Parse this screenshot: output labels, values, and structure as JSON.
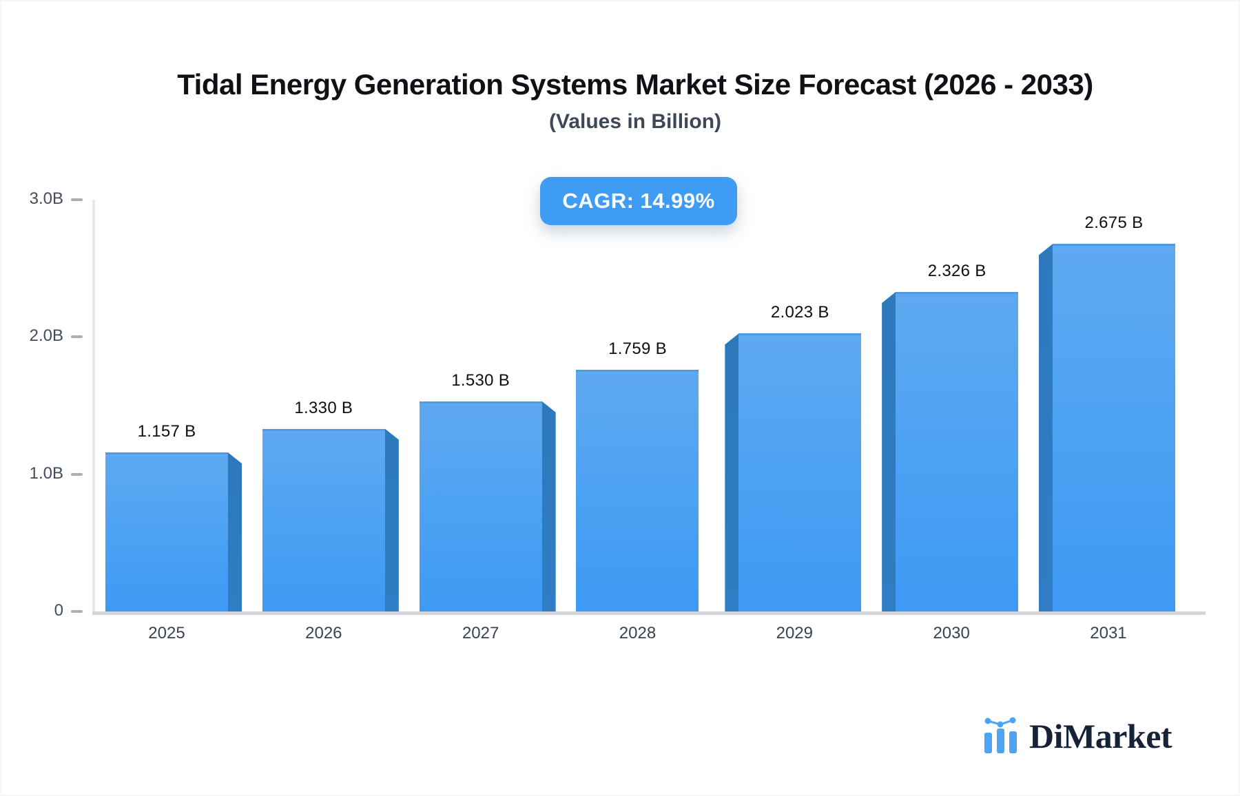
{
  "header": {
    "title": "Tidal Energy Generation Systems Market Size Forecast (2026 - 2033)",
    "subtitle": "(Values in Billion)"
  },
  "badge": {
    "label": "CAGR: 14.99%"
  },
  "branding": {
    "name": "DiMarket",
    "icon": "bar-chart-logo-icon"
  },
  "chart_data": {
    "type": "bar",
    "title": "Tidal Energy Generation Systems Market Size Forecast (2026 - 2033)",
    "subtitle": "(Values in Billion)",
    "cagr_percent": 14.99,
    "categories": [
      "2025",
      "2026",
      "2027",
      "2028",
      "2029",
      "2030",
      "2031"
    ],
    "values": [
      1.157,
      1.33,
      1.53,
      1.759,
      2.023,
      2.326,
      2.675
    ],
    "value_labels": [
      "1.157 B",
      "1.330 B",
      "1.530 B",
      "1.759 B",
      "2.023 B",
      "2.326 B",
      "2.675 B"
    ],
    "xlabel": "",
    "ylabel": "",
    "ylim": [
      0,
      3
    ],
    "yticks": [
      {
        "v": 3,
        "label": "3.0B"
      },
      {
        "v": 2,
        "label": "2.0B"
      },
      {
        "v": 1,
        "label": "1.0B"
      },
      {
        "v": 0,
        "label": "0"
      }
    ],
    "grid": false,
    "legend": false,
    "style": "3d-extruded-bars"
  },
  "colors": {
    "bar_face_top": "#5FA9F1",
    "bar_face_bottom": "#3E9AF4",
    "bar_face_edge": "#4E9BE4",
    "bar_side": "#2E78BC",
    "badge_bg": "#3E9CF4",
    "badge_text": "#FFFFFF",
    "baseline": "#D2D6DB",
    "axis_line": "#E6E8EC",
    "tick_dash": "#A9AFB9",
    "axis_text": "#424C5C",
    "value_text": "#0C0E12",
    "logo_navy": "#152238",
    "logo_blue": "#4DA3F5"
  }
}
